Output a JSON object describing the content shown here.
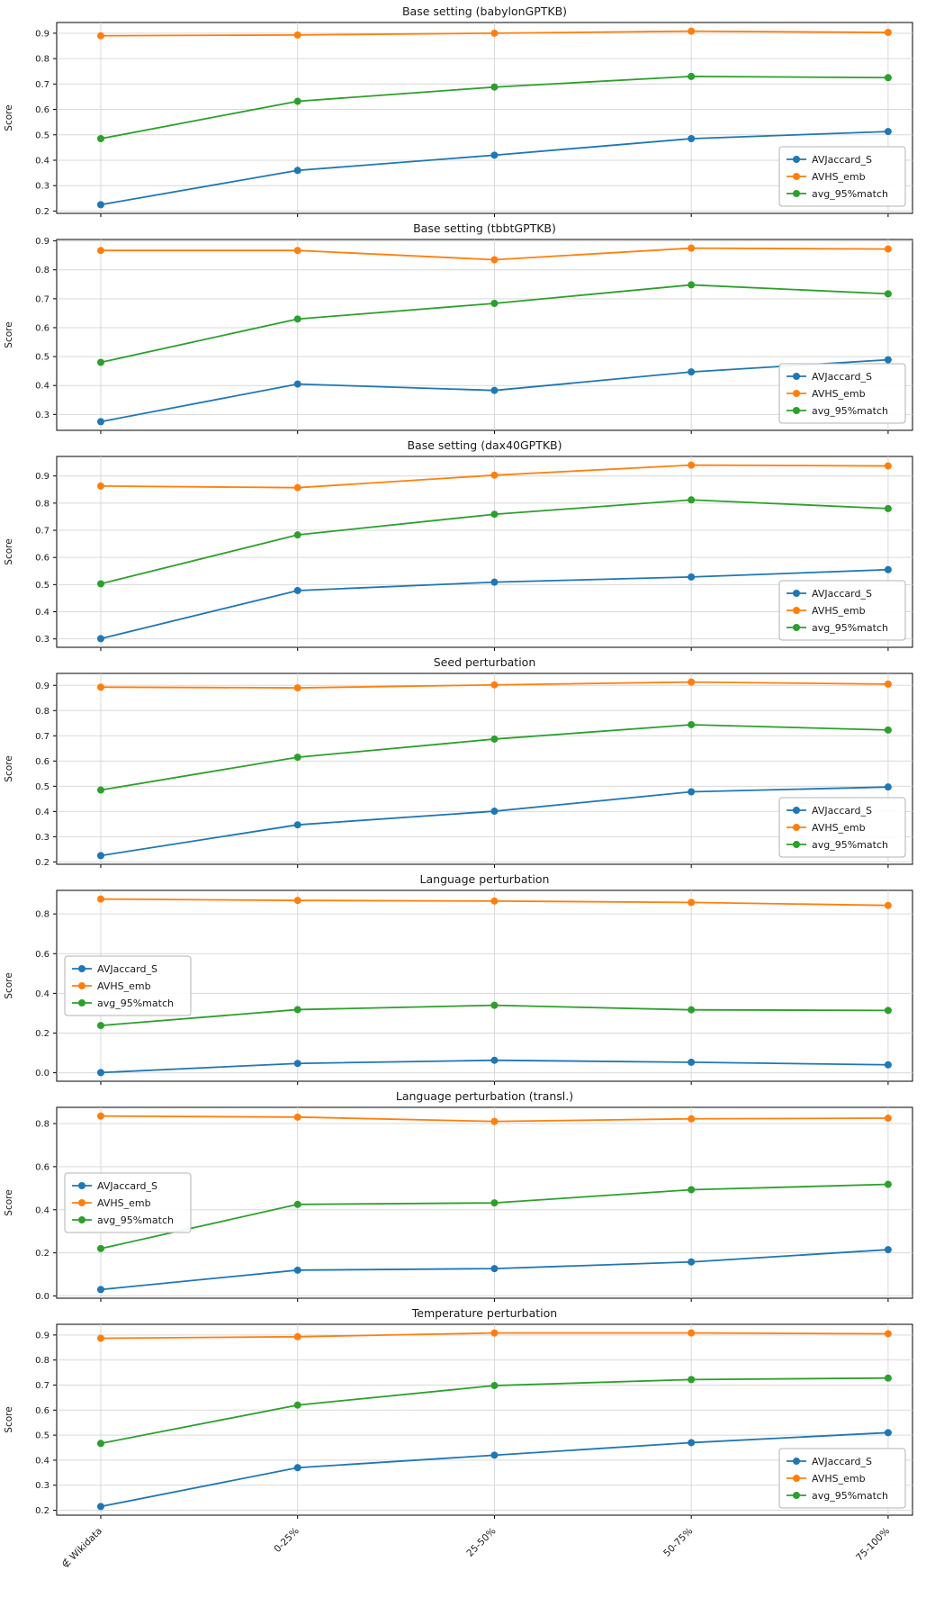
{
  "figure": {
    "background": "#ffffff",
    "axis_color": "#000000",
    "grid_color": "#d9d9d9",
    "text_color": "#1a1a1a",
    "legend_border_color": "#b3b3b3"
  },
  "chart_data": {
    "type": "line",
    "categories": [
      "∉ Wikidata",
      "0-25%",
      "25-50%",
      "50-75%",
      "75-100%"
    ],
    "series_names": [
      "AVJaccard_S",
      "AVHS_emb",
      "avg_95%match"
    ],
    "series_colors": [
      "#1f77b4",
      "#ff7f0e",
      "#2ca02c"
    ],
    "grid": true,
    "marker": "circle",
    "charts": [
      {
        "title": "Base setting (babylonGPTKB)",
        "ylabel": "Score",
        "yticks": [
          0.2,
          0.3,
          0.4,
          0.5,
          0.6,
          0.7,
          0.8,
          0.9
        ],
        "legend_position": "lower-right",
        "series": [
          {
            "name": "AVJaccard_S",
            "color": "#1f77b4",
            "values": [
              0.225,
              0.36,
              0.42,
              0.485,
              0.513
            ]
          },
          {
            "name": "AVHS_emb",
            "color": "#ff7f0e",
            "values": [
              0.89,
              0.893,
              0.9,
              0.908,
              0.903
            ]
          },
          {
            "name": "avg_95%match",
            "color": "#2ca02c",
            "values": [
              0.485,
              0.632,
              0.688,
              0.73,
              0.725
            ]
          }
        ]
      },
      {
        "title": "Base setting (tbbtGPTKB)",
        "ylabel": "Score",
        "yticks": [
          0.3,
          0.4,
          0.5,
          0.6,
          0.7,
          0.8,
          0.9
        ],
        "legend_position": "lower-right",
        "series": [
          {
            "name": "AVJaccard_S",
            "color": "#1f77b4",
            "values": [
              0.275,
              0.405,
              0.383,
              0.447,
              0.489
            ]
          },
          {
            "name": "AVHS_emb",
            "color": "#ff7f0e",
            "values": [
              0.867,
              0.867,
              0.835,
              0.875,
              0.872
            ]
          },
          {
            "name": "avg_95%match",
            "color": "#2ca02c",
            "values": [
              0.48,
              0.63,
              0.684,
              0.748,
              0.717
            ]
          }
        ]
      },
      {
        "title": "Base setting (dax40GPTKB)",
        "ylabel": "Score",
        "yticks": [
          0.3,
          0.4,
          0.5,
          0.6,
          0.7,
          0.8,
          0.9
        ],
        "legend_position": "lower-right",
        "series": [
          {
            "name": "AVJaccard_S",
            "color": "#1f77b4",
            "values": [
              0.301,
              0.478,
              0.509,
              0.528,
              0.555
            ]
          },
          {
            "name": "AVHS_emb",
            "color": "#ff7f0e",
            "values": [
              0.863,
              0.857,
              0.903,
              0.94,
              0.937
            ]
          },
          {
            "name": "avg_95%match",
            "color": "#2ca02c",
            "values": [
              0.503,
              0.683,
              0.759,
              0.812,
              0.78
            ]
          }
        ]
      },
      {
        "title": "Seed perturbation",
        "ylabel": "Score",
        "yticks": [
          0.2,
          0.3,
          0.4,
          0.5,
          0.6,
          0.7,
          0.8,
          0.9
        ],
        "legend_position": "lower-right",
        "series": [
          {
            "name": "AVJaccard_S",
            "color": "#1f77b4",
            "values": [
              0.225,
              0.347,
              0.401,
              0.478,
              0.497
            ]
          },
          {
            "name": "AVHS_emb",
            "color": "#ff7f0e",
            "values": [
              0.893,
              0.89,
              0.902,
              0.913,
              0.905
            ]
          },
          {
            "name": "avg_95%match",
            "color": "#2ca02c",
            "values": [
              0.485,
              0.615,
              0.687,
              0.744,
              0.723
            ]
          }
        ]
      },
      {
        "title": "Language perturbation",
        "ylabel": "Score",
        "yticks": [
          0.0,
          0.2,
          0.4,
          0.6,
          0.8
        ],
        "legend_position": "center-left",
        "series": [
          {
            "name": "AVJaccard_S",
            "color": "#1f77b4",
            "values": [
              0.001,
              0.047,
              0.063,
              0.053,
              0.04
            ]
          },
          {
            "name": "AVHS_emb",
            "color": "#ff7f0e",
            "values": [
              0.875,
              0.868,
              0.865,
              0.858,
              0.843
            ]
          },
          {
            "name": "avg_95%match",
            "color": "#2ca02c",
            "values": [
              0.238,
              0.318,
              0.34,
              0.317,
              0.314
            ]
          }
        ]
      },
      {
        "title": "Language perturbation (transl.)",
        "ylabel": "Score",
        "yticks": [
          0.0,
          0.2,
          0.4,
          0.6,
          0.8
        ],
        "legend_position": "center-left",
        "series": [
          {
            "name": "AVJaccard_S",
            "color": "#1f77b4",
            "values": [
              0.03,
              0.12,
              0.127,
              0.158,
              0.215
            ]
          },
          {
            "name": "AVHS_emb",
            "color": "#ff7f0e",
            "values": [
              0.835,
              0.83,
              0.81,
              0.822,
              0.825
            ]
          },
          {
            "name": "avg_95%match",
            "color": "#2ca02c",
            "values": [
              0.22,
              0.425,
              0.432,
              0.493,
              0.518
            ]
          }
        ]
      },
      {
        "title": "Temperature perturbation",
        "ylabel": "Score",
        "yticks": [
          0.2,
          0.3,
          0.4,
          0.5,
          0.6,
          0.7,
          0.8,
          0.9
        ],
        "legend_position": "lower-right",
        "series": [
          {
            "name": "AVJaccard_S",
            "color": "#1f77b4",
            "values": [
              0.215,
              0.37,
              0.42,
              0.47,
              0.51
            ]
          },
          {
            "name": "AVHS_emb",
            "color": "#ff7f0e",
            "values": [
              0.887,
              0.893,
              0.908,
              0.908,
              0.905
            ]
          },
          {
            "name": "avg_95%match",
            "color": "#2ca02c",
            "values": [
              0.467,
              0.62,
              0.698,
              0.722,
              0.728
            ]
          }
        ]
      }
    ]
  }
}
